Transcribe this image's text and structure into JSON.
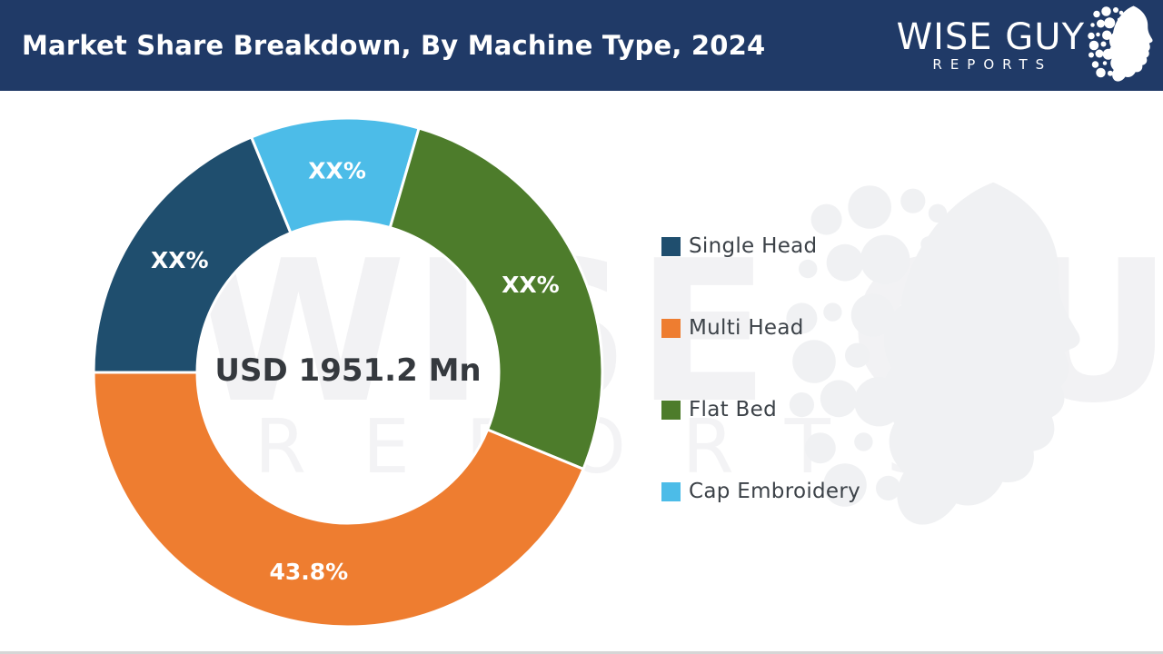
{
  "header": {
    "title": "Market Share Breakdown, By Machine Type, 2024",
    "logo": {
      "line1": "WISE GUY",
      "line2": "REPORTS"
    }
  },
  "watermark": {
    "line1": "WISE GUY",
    "line2": "REPORTS"
  },
  "chart_data": {
    "type": "pie",
    "subtype": "donut",
    "title": "Market Share Breakdown, By Machine Type, 2024",
    "center_label": "USD 1951.2 Mn",
    "units": "percent of market share",
    "slices": [
      {
        "label": "Single Head",
        "value": 18.8,
        "display": "XX%",
        "color": "#1f4e6e"
      },
      {
        "label": "Multi Head",
        "value": 43.8,
        "display": "43.8%",
        "color": "#ee7d30"
      },
      {
        "label": "Flat Bed",
        "value": 26.7,
        "display": "XX%",
        "color": "#4d7c2b"
      },
      {
        "label": "Cap Embroidery",
        "value": 10.7,
        "display": "XX%",
        "color": "#4cbce8"
      }
    ],
    "layout_hints": {
      "start_angle_deg_from_north": 270,
      "direction": "clockwise",
      "clockwise_order": [
        0,
        3,
        2,
        1
      ],
      "legend_position": "right",
      "donut_hole_ratio": 0.59,
      "slice_gap_stroke": "#ffffff"
    }
  },
  "colors": {
    "header_bg": "#203a67",
    "title_text": "#ffffff",
    "center_text": "#35393e",
    "legend_text": "#3c4248",
    "watermark": "#f2f2f4",
    "bottom_rule": "#d6d6d6"
  }
}
